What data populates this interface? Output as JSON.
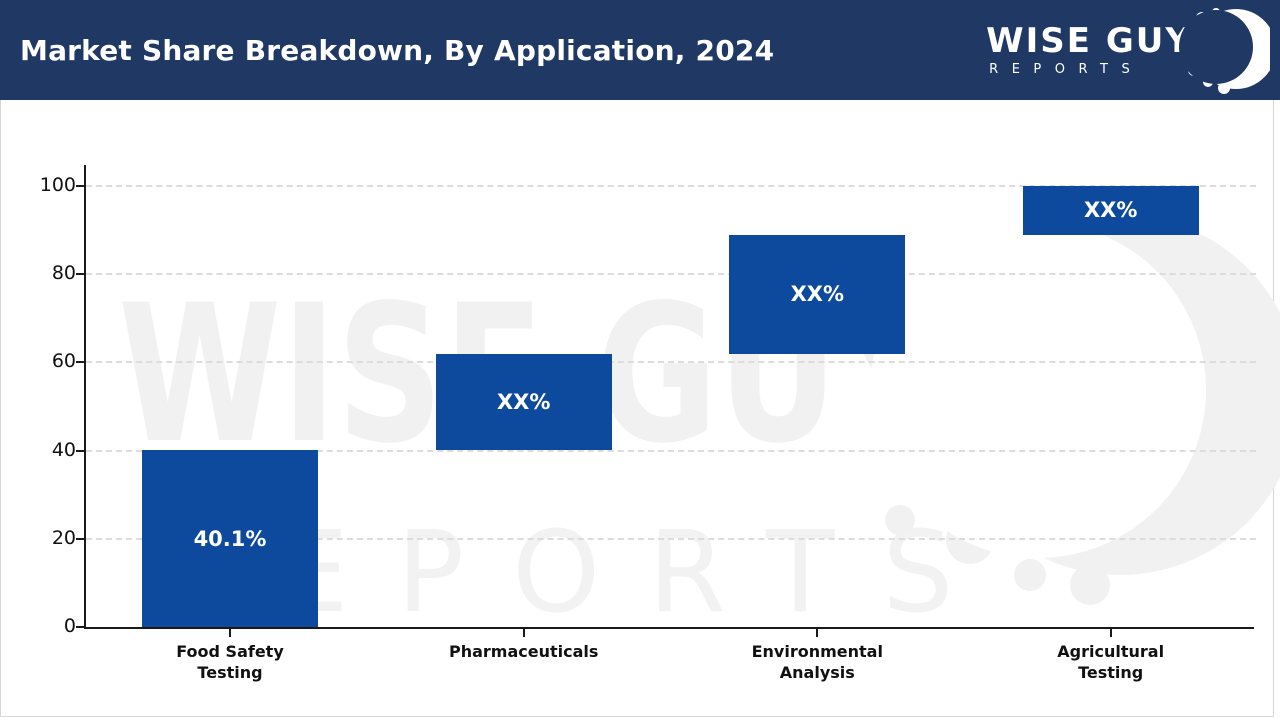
{
  "header": {
    "title": "Market Share Breakdown, By Application, 2024",
    "logo": {
      "line1": "WISE GUY",
      "line2": "REPORTS"
    }
  },
  "watermark": {
    "line1": "WISE GUY",
    "line2": "REPORTS"
  },
  "chart_data": {
    "type": "bar",
    "subtype": "floating-waterfall",
    "title": "Market Share Breakdown, By Application, 2024",
    "categories": [
      "Food Safety Testing",
      "Pharmaceuticals",
      "Environmental Analysis",
      "Agricultural Testing"
    ],
    "category_lines": [
      [
        "Food Safety",
        "Testing"
      ],
      [
        "Pharmaceuticals"
      ],
      [
        "Environmental",
        "Analysis"
      ],
      [
        "Agricultural",
        "Testing"
      ]
    ],
    "segments": [
      {
        "category": "Food Safety Testing",
        "start": 0,
        "end": 40.1,
        "label": "40.1%"
      },
      {
        "category": "Pharmaceuticals",
        "start": 40.1,
        "end": 62,
        "label": "XX%"
      },
      {
        "category": "Environmental Analysis",
        "start": 62,
        "end": 89,
        "label": "XX%"
      },
      {
        "category": "Agricultural Testing",
        "start": 89,
        "end": 100,
        "label": "XX%"
      }
    ],
    "yticks": [
      0,
      20,
      40,
      60,
      80,
      100
    ],
    "ylim": [
      0,
      103.5
    ],
    "xlabel": "",
    "ylabel": "",
    "grid": "horizontal-dashed",
    "legend": "none",
    "colors": {
      "bar": "#0d4a9e",
      "bar_label": "#ffffff",
      "axis": "#1a1a1a",
      "grid": "#dcdcdc",
      "header_bg": "#1f3864",
      "watermark": "#f1f1f1"
    }
  }
}
